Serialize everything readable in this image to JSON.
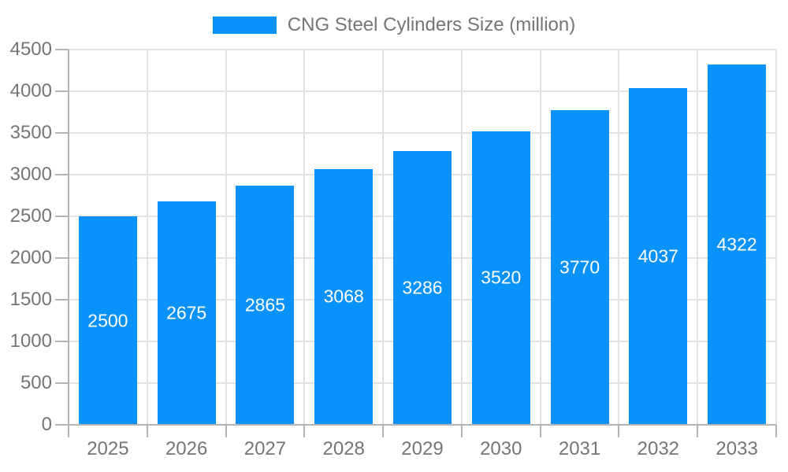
{
  "chart_data": {
    "type": "bar",
    "title": "CNG Steel Cylinders Size (million)",
    "categories": [
      "2025",
      "2026",
      "2027",
      "2028",
      "2029",
      "2030",
      "2031",
      "2032",
      "2033"
    ],
    "values": [
      2500,
      2675,
      2865,
      3068,
      3286,
      3520,
      3770,
      4037,
      4322
    ],
    "xlabel": "",
    "ylabel": "",
    "ylim": [
      0,
      4500
    ],
    "ytick_step": 500,
    "grid": "both",
    "legend_position": "top-center",
    "colors": {
      "bar": "#0892fa",
      "value_label": "#ffffff",
      "axis_text": "#757575",
      "grid_line": "#e2e2e2",
      "axis_line": "#b3b3b3",
      "background": "#ffffff"
    }
  }
}
